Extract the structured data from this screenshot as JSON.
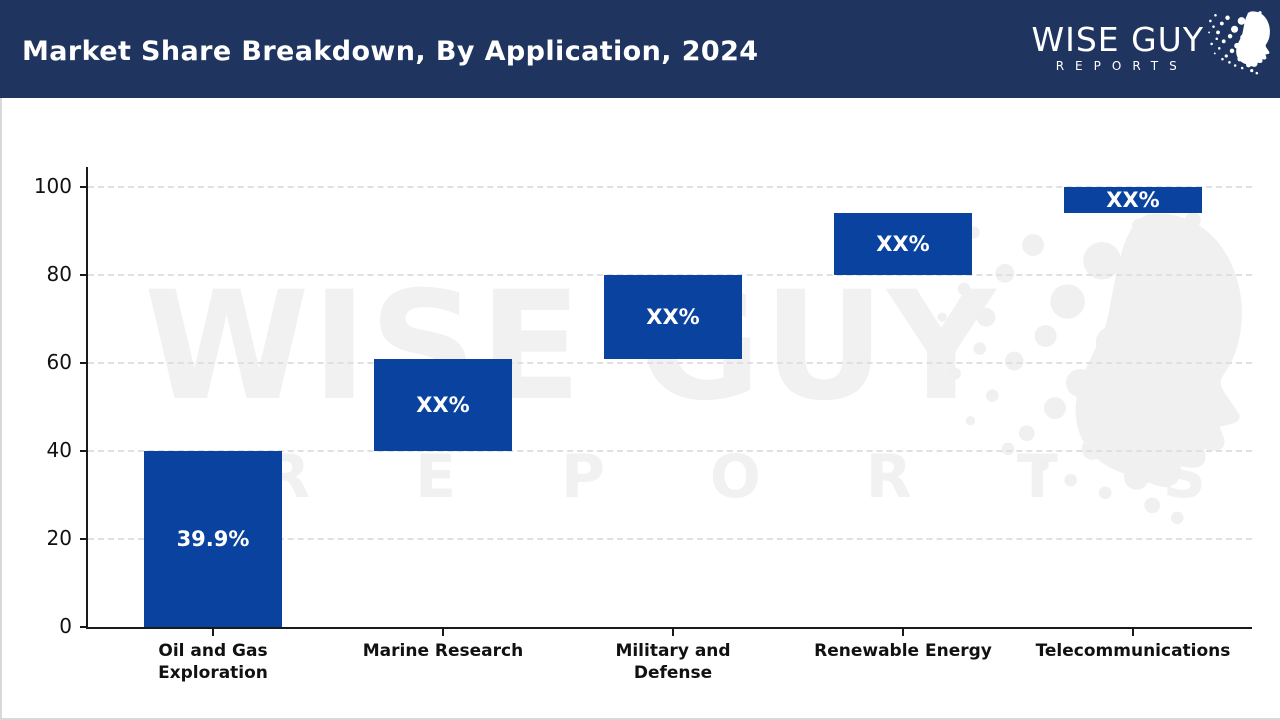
{
  "header": {
    "title": "Market Share Breakdown, By Application, 2024",
    "logo_line1": "WISE GUY",
    "logo_line2": "REPORTS"
  },
  "watermark": {
    "line1": "WISE GUY",
    "line2": "R E P O R T S"
  },
  "colors": {
    "header_bg": "#1f3560",
    "bar": "#0a42a0",
    "grid": "#e0e0e0",
    "axis": "#1a1a1a",
    "watermark": "#f1f1f1",
    "bar_label": "#ffffff"
  },
  "chart_data": {
    "type": "bar",
    "subtype": "floating-waterfall",
    "title": "Market Share Breakdown, By Application, 2024",
    "categories": [
      "Oil and Gas Exploration",
      "Marine Research",
      "Military and Defense",
      "Renewable Energy",
      "Telecommunications"
    ],
    "category_label_lines": [
      [
        "Oil and Gas",
        "Exploration"
      ],
      [
        "Marine Research"
      ],
      [
        "Military and",
        "Defense"
      ],
      [
        "Renewable Energy"
      ],
      [
        "Telecommunications"
      ]
    ],
    "segments": [
      {
        "category": "Oil and Gas Exploration",
        "start": 0,
        "end": 39.9,
        "label": "39.9%"
      },
      {
        "category": "Marine Research",
        "start": 39.9,
        "end": 61,
        "label": "XX%"
      },
      {
        "category": "Military and Defense",
        "start": 61,
        "end": 80,
        "label": "XX%"
      },
      {
        "category": "Renewable Energy",
        "start": 80,
        "end": 94,
        "label": "XX%"
      },
      {
        "category": "Telecommunications",
        "start": 94,
        "end": 100,
        "label": "XX%"
      }
    ],
    "xlabel": "",
    "ylabel": "",
    "ylim": [
      0,
      100
    ],
    "yticks": [
      0,
      20,
      40,
      60,
      80,
      100
    ],
    "grid": "horizontal-dashed",
    "legend": "none"
  }
}
